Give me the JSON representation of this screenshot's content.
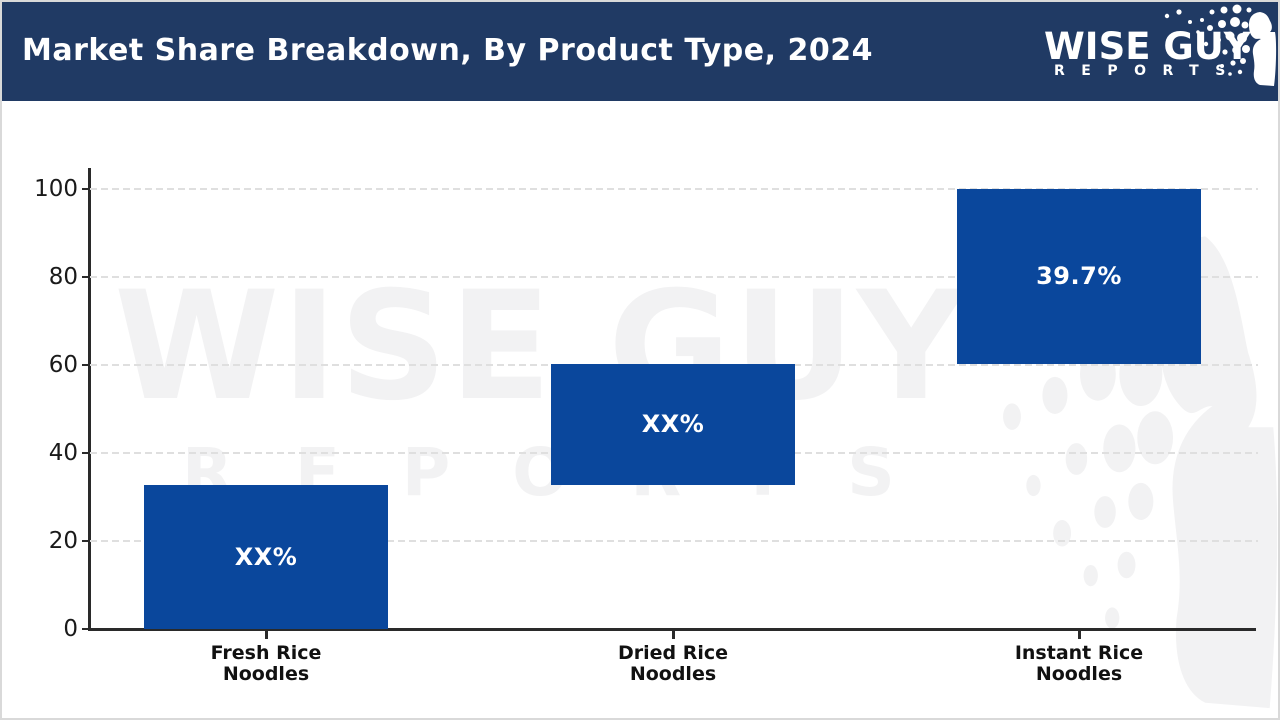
{
  "header": {
    "title": "Market Share Breakdown, By Product Type, 2024",
    "logo": {
      "name": "WISE GUY",
      "subtitle": "REPORTS"
    }
  },
  "watermark": {
    "line1": "WISE GUY",
    "line2": "REPORTS"
  },
  "chart_data": {
    "type": "bar",
    "subtype": "waterfall-floating-bars",
    "title": "Market Share Breakdown, By Product Type, 2024",
    "categories": [
      "Fresh Rice Noodles",
      "Dried Rice Noodles",
      "Instant Rice Noodles"
    ],
    "bars": [
      {
        "category": "Fresh Rice Noodles",
        "start": 0,
        "end": 32.8,
        "value_label": "XX%"
      },
      {
        "category": "Dried Rice Noodles",
        "start": 32.8,
        "end": 60.3,
        "value_label": "XX%"
      },
      {
        "category": "Instant Rice Noodles",
        "start": 60.3,
        "end": 100,
        "value_label": "39.7%"
      }
    ],
    "ylim": [
      0,
      100
    ],
    "yticks": [
      0,
      20,
      40,
      60,
      80,
      100
    ],
    "xlabel": "",
    "ylabel": "",
    "grid": "horizontal-dashed",
    "legend": "none",
    "bar_color": "#0a479c",
    "bar_label_color": "#ffffff"
  },
  "colors": {
    "header_bg": "#203a64",
    "bar": "#0a479c",
    "grid": "#dfdfdf",
    "axis": "#2a2a2a",
    "watermark": "#f2f2f3",
    "canvas_border": "#d9d9d9"
  }
}
